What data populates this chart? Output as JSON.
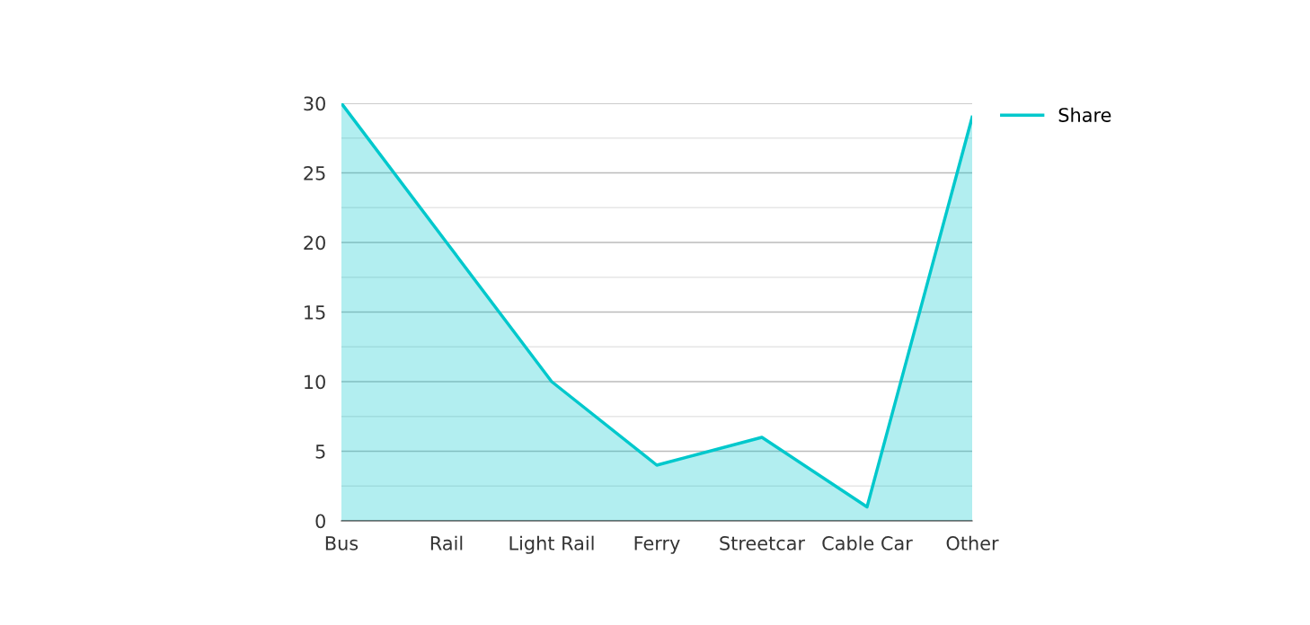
{
  "chart_data": {
    "type": "area",
    "categories": [
      "Bus",
      "Rail",
      "Light Rail",
      "Ferry",
      "Streetcar",
      "Cable Car",
      "Other"
    ],
    "series": [
      {
        "name": "Share",
        "color": "#00c8cc",
        "values": [
          30,
          20,
          10,
          4,
          6,
          1,
          29
        ]
      }
    ],
    "ylim": [
      0,
      30
    ],
    "yticks": [
      0,
      {
        "value": 2.5,
        "label": null
      },
      5,
      {
        "value": 7.5,
        "label": null
      },
      10,
      {
        "value": 12.5,
        "label": null
      },
      15,
      {
        "value": 17.5,
        "label": null
      },
      20,
      {
        "value": 22.5,
        "label": null
      },
      25,
      {
        "value": 27.5,
        "label": null
      },
      30
    ],
    "grid": "y",
    "legend": "top right",
    "marker": "none",
    "line_style": "solid"
  }
}
